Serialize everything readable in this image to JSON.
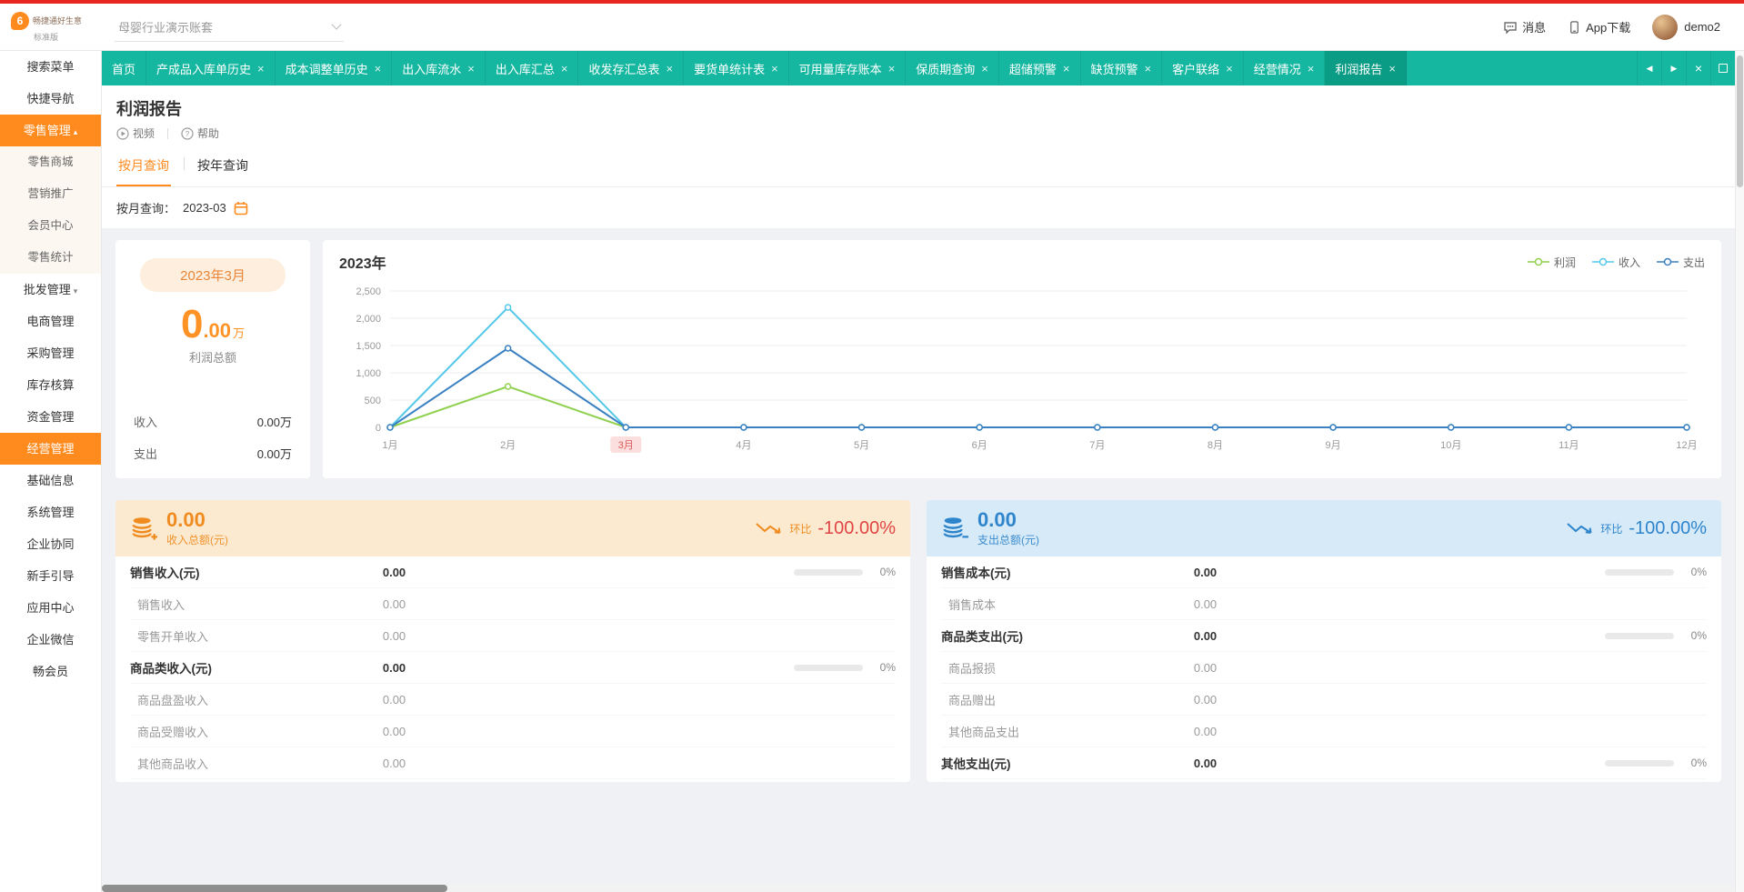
{
  "theme": {
    "accent_orange": "#ff8a1e",
    "tabbar_teal": "#15b7a0",
    "income_accent": "#ef8b1f",
    "expense_accent": "#2f85cc",
    "negative_red": "#e04545"
  },
  "header": {
    "brand": "畅捷通好生意",
    "edition": "标准版",
    "account": "母婴行业演示账套",
    "messages": "消息",
    "app_download": "App下载",
    "username": "demo2"
  },
  "sidebar": {
    "items": [
      {
        "label": "搜索菜单"
      },
      {
        "label": "快捷导航"
      },
      {
        "label": "零售管理",
        "active": true,
        "expanded": true
      },
      {
        "label": "零售商城",
        "child": true
      },
      {
        "label": "营销推广",
        "child": true
      },
      {
        "label": "会员中心",
        "child": true
      },
      {
        "label": "零售统计",
        "child": true
      },
      {
        "label": "批发管理",
        "collapsible": true
      },
      {
        "label": "电商管理"
      },
      {
        "label": "采购管理"
      },
      {
        "label": "库存核算"
      },
      {
        "label": "资金管理"
      },
      {
        "label": "经营管理",
        "active": true
      },
      {
        "label": "基础信息"
      },
      {
        "label": "系统管理"
      },
      {
        "label": "企业协同"
      },
      {
        "label": "新手引导"
      },
      {
        "label": "应用中心"
      },
      {
        "label": "企业微信"
      },
      {
        "label": "畅会员"
      }
    ]
  },
  "tabbar": {
    "tabs": [
      {
        "label": "首页"
      },
      {
        "label": "产成品入库单历史",
        "closable": true
      },
      {
        "label": "成本调整单历史",
        "closable": true
      },
      {
        "label": "出入库流水",
        "closable": true
      },
      {
        "label": "出入库汇总",
        "closable": true
      },
      {
        "label": "收发存汇总表",
        "closable": true
      },
      {
        "label": "要货单统计表",
        "closable": true
      },
      {
        "label": "可用量库存账本",
        "closable": true
      },
      {
        "label": "保质期查询",
        "closable": true
      },
      {
        "label": "超储预警",
        "closable": true
      },
      {
        "label": "缺货预警",
        "closable": true
      },
      {
        "label": "客户联络",
        "closable": true
      },
      {
        "label": "经营情况",
        "closable": true
      },
      {
        "label": "利润报告",
        "closable": true,
        "active": true
      }
    ]
  },
  "page": {
    "title": "利润报告",
    "video": "视频",
    "help": "帮助",
    "query_tabs": [
      {
        "label": "按月查询",
        "active": true
      },
      {
        "label": "按年查询"
      }
    ],
    "filter_label": "按月查询：",
    "filter_value": "2023-03"
  },
  "summary": {
    "period": "2023年3月",
    "total_int": "0",
    "total_dec": ".00",
    "total_unit": "万",
    "total_label": "利润总额",
    "rows": [
      {
        "label": "收入",
        "value": "0.00万"
      },
      {
        "label": "支出",
        "value": "0.00万"
      }
    ]
  },
  "chart_data": {
    "type": "line",
    "title": "2023年",
    "x": [
      "1月",
      "2月",
      "3月",
      "4月",
      "5月",
      "6月",
      "7月",
      "8月",
      "9月",
      "10月",
      "11月",
      "12月"
    ],
    "highlight_x": "3月",
    "ylim": [
      0,
      2500
    ],
    "yticks": [
      0,
      500,
      1000,
      1500,
      2000,
      2500
    ],
    "grid": true,
    "legend_position": "top-right",
    "series": [
      {
        "name": "利润",
        "color": "#8fd14f",
        "values": [
          0,
          750,
          0,
          0,
          0,
          0,
          0,
          0,
          0,
          0,
          0,
          0
        ]
      },
      {
        "name": "收入",
        "color": "#54c8e8",
        "values": [
          0,
          2200,
          0,
          0,
          0,
          0,
          0,
          0,
          0,
          0,
          0,
          0
        ]
      },
      {
        "name": "支出",
        "color": "#3a80c2",
        "values": [
          0,
          1450,
          0,
          0,
          0,
          0,
          0,
          0,
          0,
          0,
          0,
          0
        ]
      }
    ]
  },
  "income_card": {
    "total": "0.00",
    "label": "收入总额(元)",
    "trend_label": "环比",
    "trend_value": "-100.00%",
    "rows": [
      {
        "label": "销售收入(元)",
        "value": "0.00",
        "percent": "0%",
        "bold": true,
        "has_bar": true
      },
      {
        "label": "销售收入",
        "value": "0.00"
      },
      {
        "label": "零售开单收入",
        "value": "0.00"
      },
      {
        "label": "商品类收入(元)",
        "value": "0.00",
        "percent": "0%",
        "bold": true,
        "has_bar": true
      },
      {
        "label": "商品盘盈收入",
        "value": "0.00"
      },
      {
        "label": "商品受赠收入",
        "value": "0.00"
      },
      {
        "label": "其他商品收入",
        "value": "0.00"
      }
    ]
  },
  "expense_card": {
    "total": "0.00",
    "label": "支出总额(元)",
    "trend_label": "环比",
    "trend_value": "-100.00%",
    "rows": [
      {
        "label": "销售成本(元)",
        "value": "0.00",
        "percent": "0%",
        "bold": true,
        "has_bar": true
      },
      {
        "label": "销售成本",
        "value": "0.00"
      },
      {
        "label": "商品类支出(元)",
        "value": "0.00",
        "percent": "0%",
        "bold": true,
        "has_bar": true
      },
      {
        "label": "商品报损",
        "value": "0.00"
      },
      {
        "label": "商品赠出",
        "value": "0.00"
      },
      {
        "label": "其他商品支出",
        "value": "0.00"
      },
      {
        "label": "其他支出(元)",
        "value": "0.00",
        "percent": "0%",
        "bold": true,
        "has_bar": true
      }
    ]
  }
}
